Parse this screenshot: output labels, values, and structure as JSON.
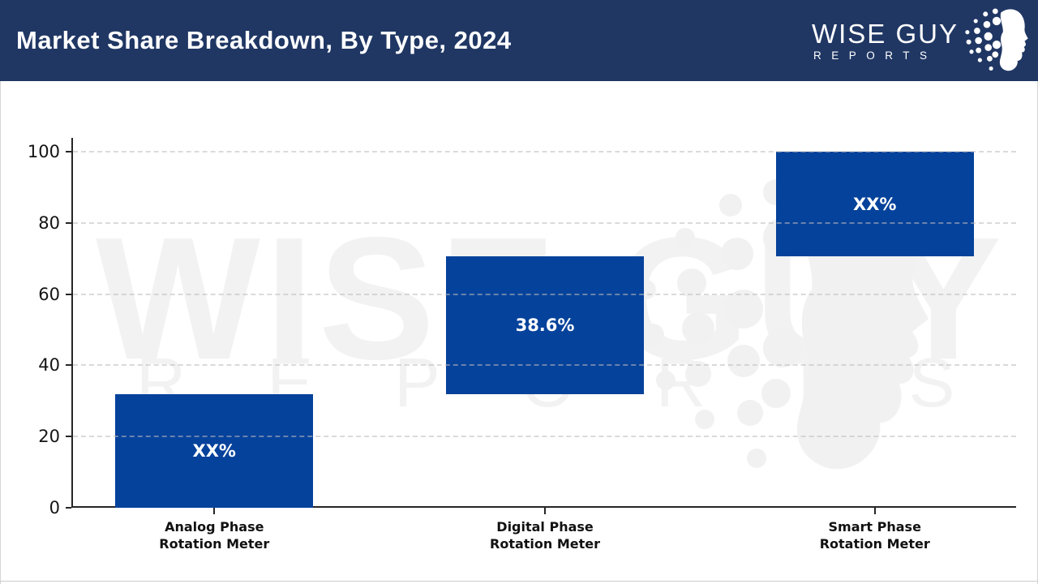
{
  "header": {
    "title": "Market Share Breakdown, By Type, 2024",
    "logo": {
      "line1": "WISE GUY",
      "line2": "REPORTS"
    }
  },
  "watermark": {
    "line1": "WISE GUY",
    "line2": "REPORTS"
  },
  "colors": {
    "header_bg": "#203764",
    "bar": "#05429B",
    "axis": "#262626",
    "grid": "rgba(187,187,187,0.55)",
    "watermark": "#F2F2F2",
    "bar_label": "#FFFFFF",
    "tick_text": "#141414",
    "category_text": "#111111"
  },
  "chart_data": {
    "type": "bar",
    "variant": "floating-segment",
    "title": "Market Share Breakdown, By Type, 2024",
    "categories": [
      "Analog Phase Rotation Meter",
      "Digital Phase Rotation Meter",
      "Smart Phase Rotation Meter"
    ],
    "bars": [
      {
        "category": "Analog Phase Rotation Meter",
        "start": 0,
        "end": 32,
        "label": "XX%"
      },
      {
        "category": "Digital Phase Rotation Meter",
        "start": 32,
        "end": 70.6,
        "label": "38.6%"
      },
      {
        "category": "Smart Phase Rotation Meter",
        "start": 70.6,
        "end": 100,
        "label": "XX%"
      }
    ],
    "ylim": [
      0,
      100
    ],
    "yticks": [
      0,
      20,
      40,
      60,
      80,
      100
    ],
    "xlabel": "",
    "ylabel": "",
    "grid": "horizontal-dashed",
    "legend_position": "none"
  }
}
